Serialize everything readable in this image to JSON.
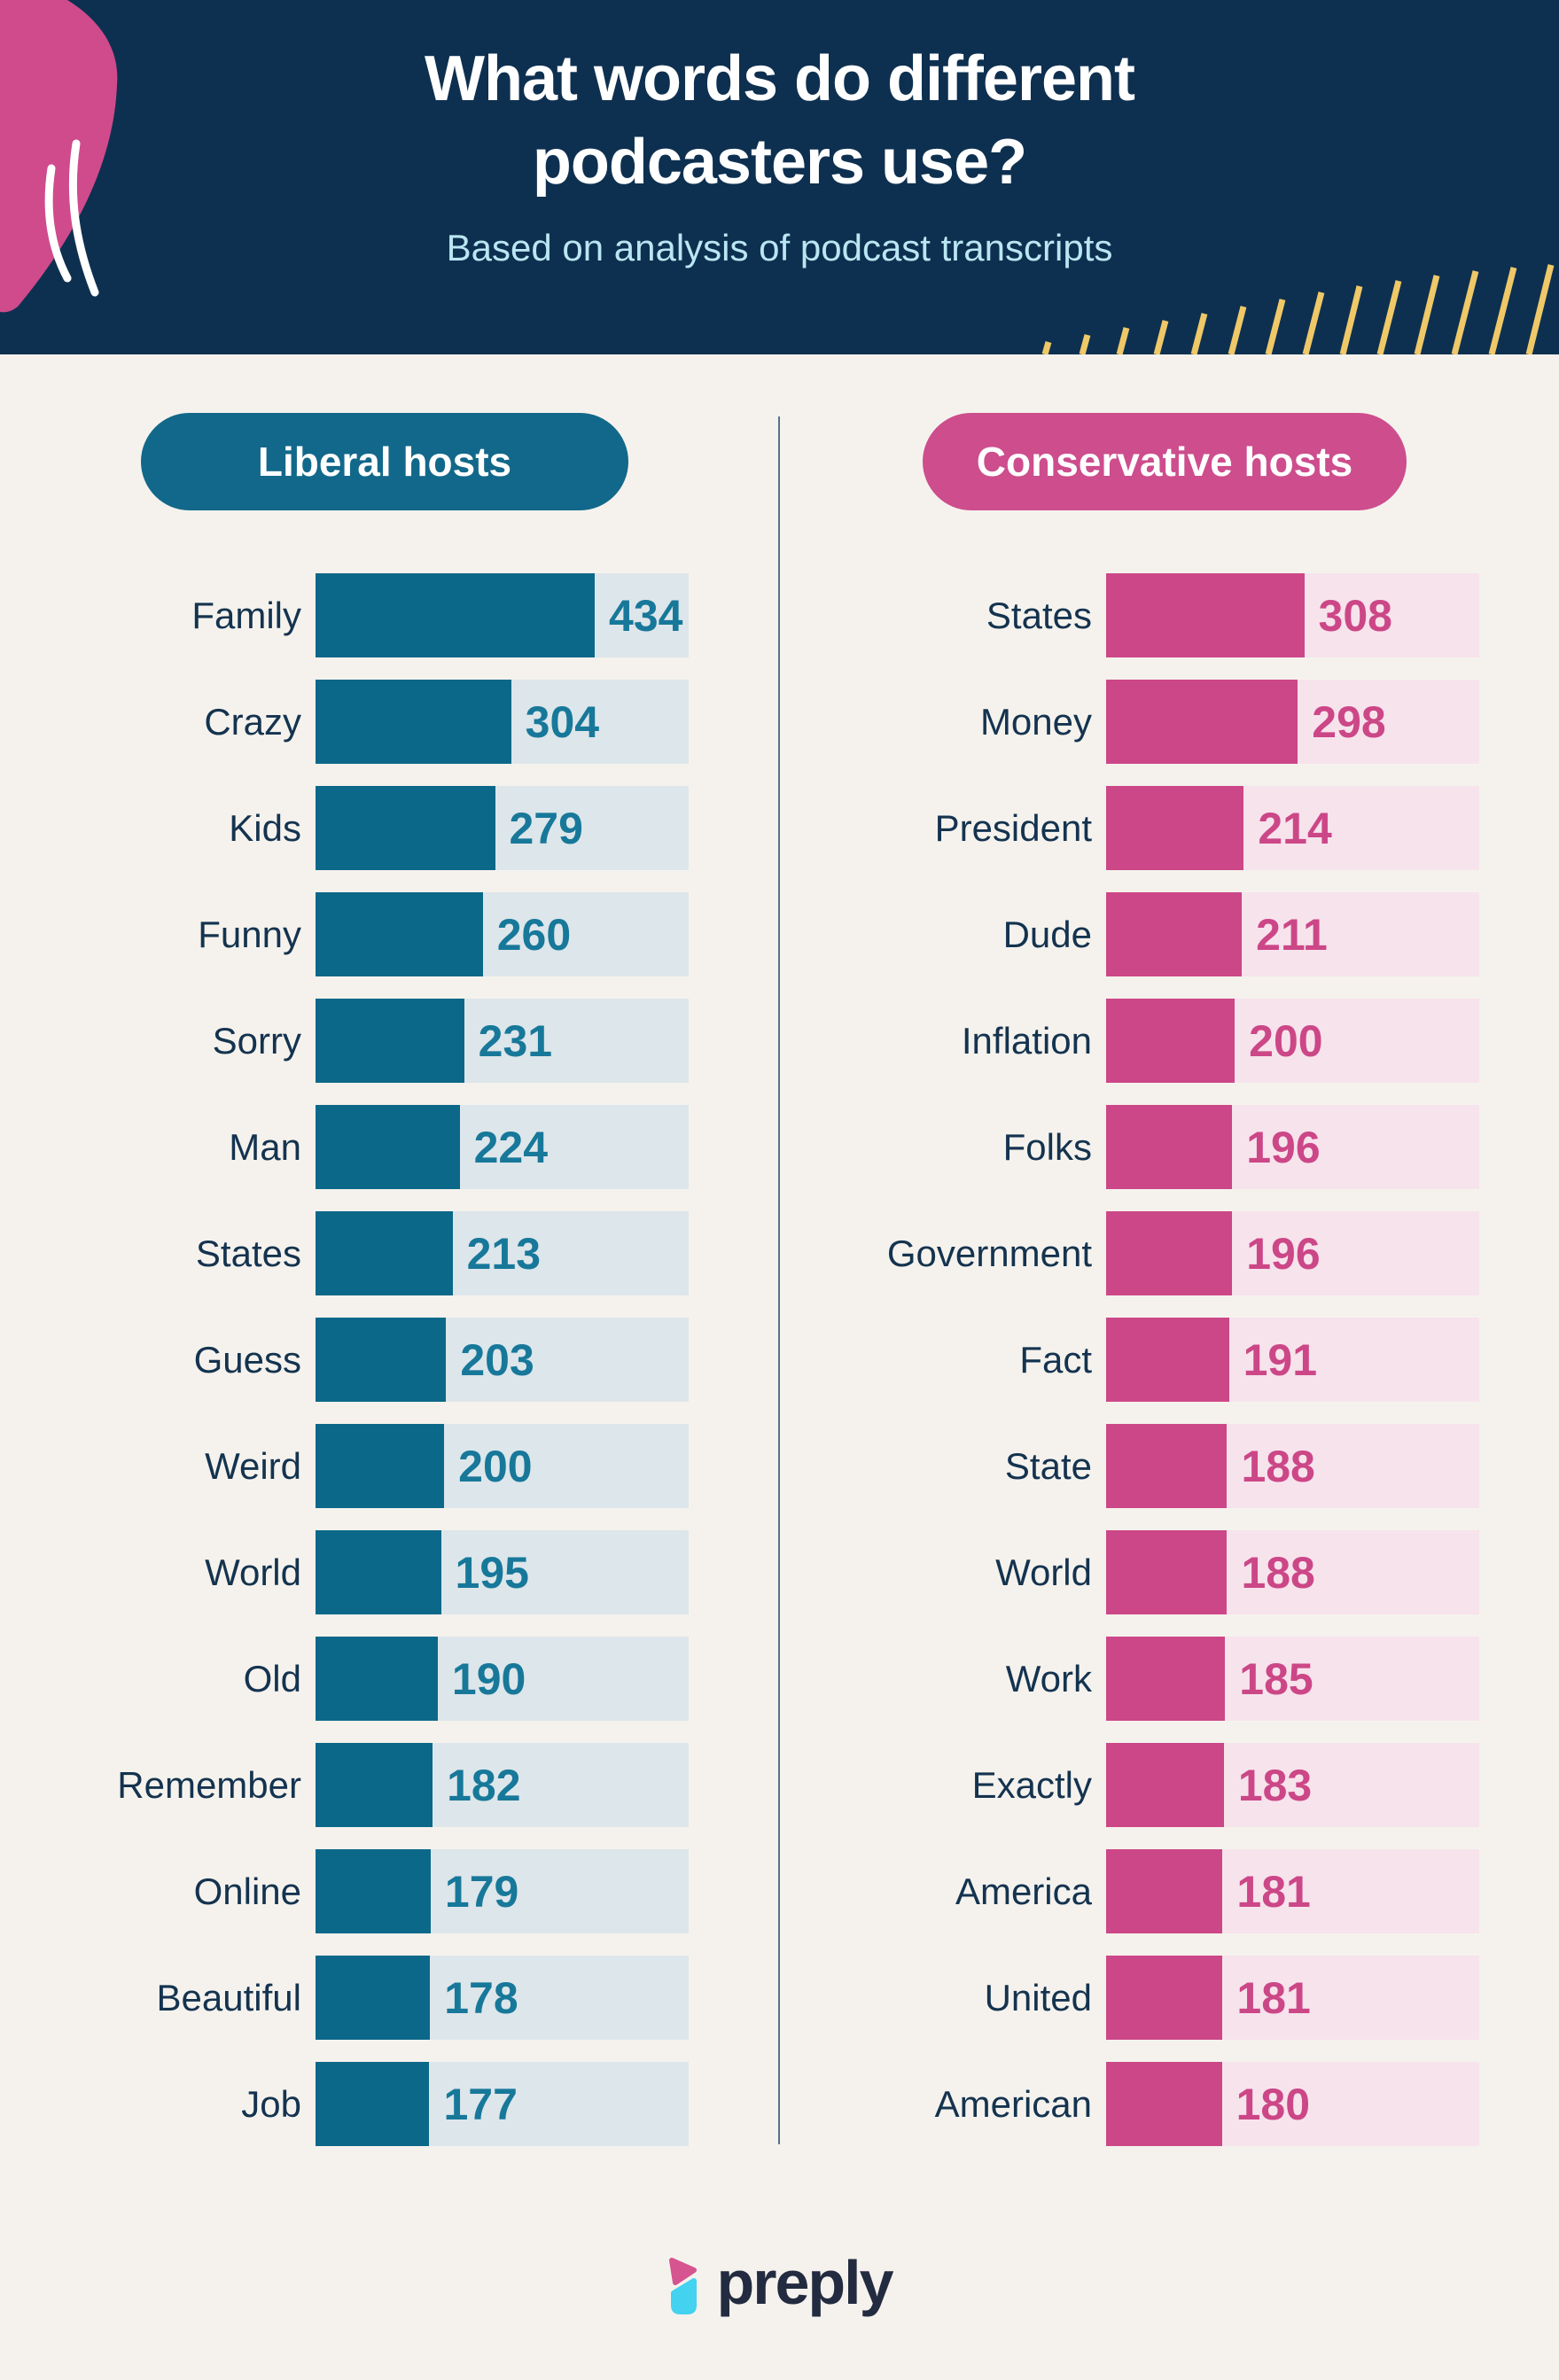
{
  "header": {
    "title_lines": [
      "What words do different",
      "podcasters use?"
    ],
    "subtitle": "Based on analysis of podcast transcripts"
  },
  "decorations": {
    "top_left": "pink-blob-with-white-arc-lines",
    "top_right": "gold-rays"
  },
  "colors": {
    "page_bg": "#f5f2ed",
    "header_bg": "#0e3050",
    "title": "#ffffff",
    "subtitle": "#b9e6f2",
    "label": "#14334f",
    "divider": "#56718c",
    "liberal_pill": "#12688a",
    "liberal_bar": "#0c6889",
    "liberal_track": "#dde6ea",
    "liberal_value": "#17789a",
    "conservative_pill": "#cd4d8d",
    "conservative_bar": "#cc4787",
    "conservative_track": "#f7e3ec",
    "conservative_value": "#cc4787",
    "gold": "#efc868",
    "blob_pink": "#cf4b8c",
    "logo_pink": "#d6548f",
    "logo_cyan": "#43d2ef",
    "logo_text": "#222b3f"
  },
  "chart_data": [
    {
      "type": "bar",
      "orientation": "horizontal",
      "title": "Liberal hosts",
      "categories": [
        "Family",
        "Crazy",
        "Kids",
        "Funny",
        "Sorry",
        "Man",
        "States",
        "Guess",
        "Weird",
        "World",
        "Old",
        "Remember",
        "Online",
        "Beautiful",
        "Job"
      ],
      "values": [
        434,
        304,
        279,
        260,
        231,
        224,
        213,
        203,
        200,
        195,
        190,
        182,
        179,
        178,
        177
      ],
      "xlim": [
        0,
        580
      ],
      "grid": false,
      "value_labels": "inside-track-after-bar"
    },
    {
      "type": "bar",
      "orientation": "horizontal",
      "title": "Conservative hosts",
      "categories": [
        "States",
        "Money",
        "President",
        "Dude",
        "Inflation",
        "Folks",
        "Government",
        "Fact",
        "State",
        "World",
        "Work",
        "Exactly",
        "America",
        "United",
        "American"
      ],
      "values": [
        308,
        298,
        214,
        211,
        200,
        196,
        196,
        191,
        188,
        188,
        185,
        183,
        181,
        181,
        180
      ],
      "xlim": [
        0,
        580
      ],
      "grid": false,
      "value_labels": "inside-track-after-bar"
    }
  ],
  "footer": {
    "brand": "preply"
  }
}
